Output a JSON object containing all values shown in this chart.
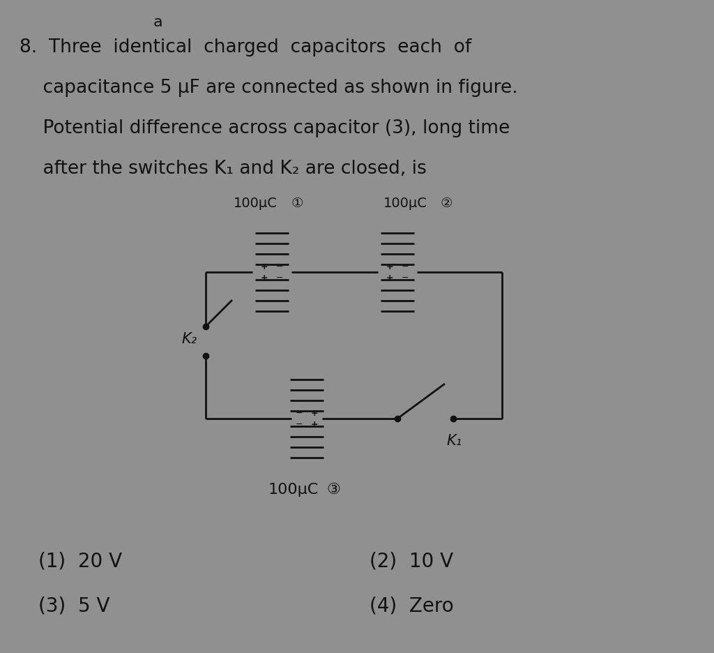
{
  "bg_color": "#909090",
  "text_color": "#111111",
  "line_color": "#111111",
  "title_line": "a",
  "question_lines": [
    "8.  Three  identical  charged  capacitors  each  of",
    "    capacitance 5 μF are connected as shown in figure.",
    "    Potential difference across capacitor (3), long time",
    "    after the switches K₁ and K₂ are closed, is"
  ],
  "cap1_label": "100μC",
  "cap1_num": "①",
  "cap2_label": "100μC",
  "cap2_num": "②",
  "cap3_label": "100μC",
  "cap3_num": "③",
  "k1_label": "K₁",
  "k2_label": "K₂",
  "opt1": "(1)  20 V",
  "opt2": "(2)  10 V",
  "opt3": "(3)  5 V",
  "opt4": "(4)  Zero",
  "font_size_q": 19,
  "font_size_opt": 20,
  "font_size_label": 15,
  "font_size_cap_label": 14
}
